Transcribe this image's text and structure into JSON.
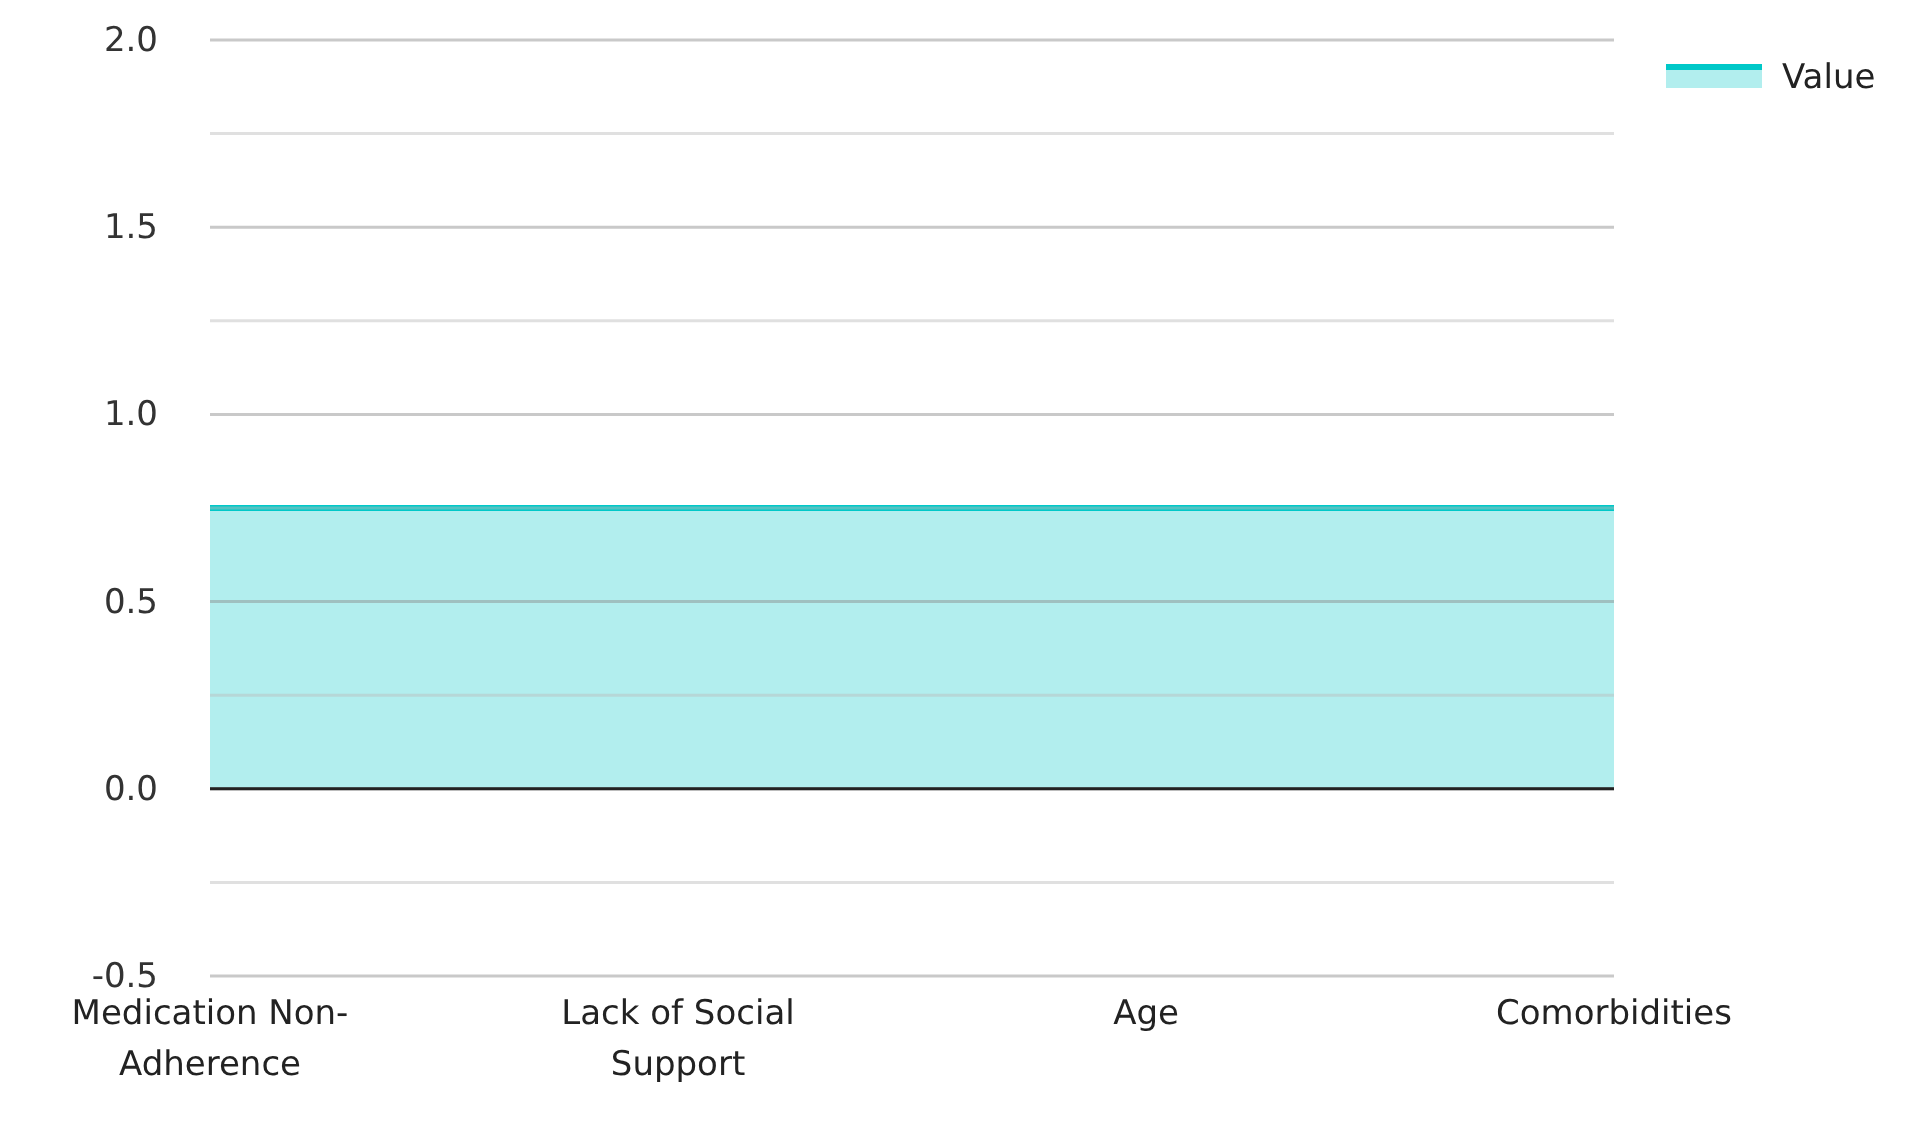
{
  "chart_data": {
    "type": "area",
    "categories": [
      "Medication Non-Adherence",
      "Lack of Social Support",
      "Age",
      "Comorbidities"
    ],
    "series": [
      {
        "name": "Value",
        "color": "#00c8c8",
        "values": [
          0.75,
          0.75,
          0.75,
          0.75
        ]
      }
    ],
    "ylim": [
      -0.5,
      2.0
    ],
    "yticks": [
      -0.5,
      {
        "value": -0.25,
        "label": null
      },
      {
        "value": 0,
        "label": "0.0"
      },
      {
        "value": 0.25,
        "label": null
      },
      0.5,
      {
        "value": 0.75,
        "label": null
      },
      {
        "value": 1,
        "label": "1.0"
      },
      {
        "value": 1.25,
        "label": null
      },
      1.5,
      {
        "value": 1.75,
        "label": null
      },
      {
        "value": 2,
        "label": "2.0"
      }
    ],
    "grid": true,
    "legend": "top right"
  }
}
